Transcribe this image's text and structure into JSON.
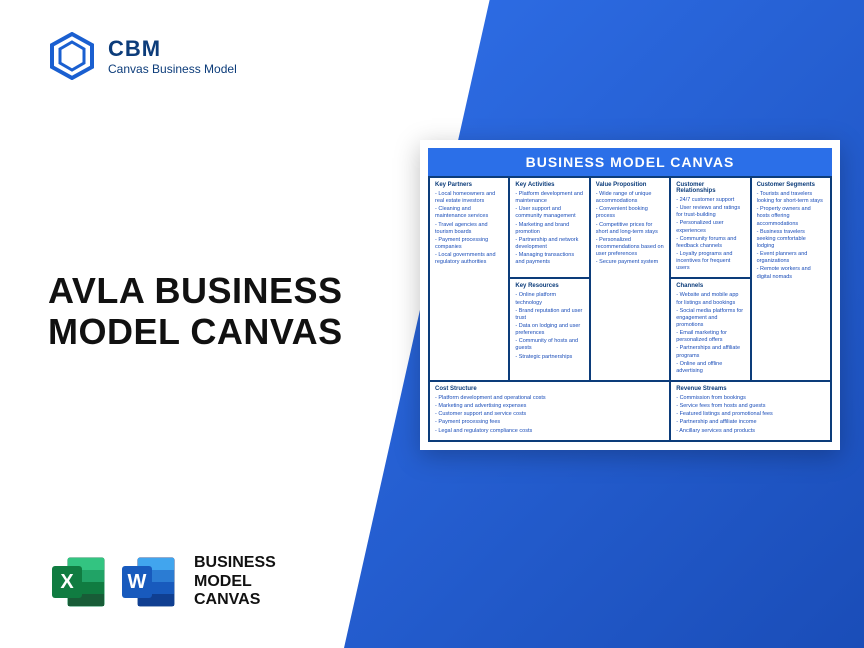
{
  "logo": {
    "brand": "CBM",
    "tagline": "Canvas Business Model"
  },
  "title": {
    "line1": "AVLA BUSINESS",
    "line2": "MODEL CANVAS"
  },
  "bottom": {
    "line1": "BUSINESS",
    "line2": "MODEL",
    "line3": "CANVAS"
  },
  "canvas": {
    "header": "BUSINESS MODEL CANVAS",
    "colors": {
      "header_bg": "#2b6fe8",
      "border": "#0c3c7a",
      "text": "#1a4db8"
    },
    "sections": {
      "key_partners": {
        "title": "Key Partners",
        "items": [
          "Local homeowners and real estate investors",
          "Cleaning and maintenance services",
          "Travel agencies and tourism boards",
          "Payment processing companies",
          "Local governments and regulatory authorities"
        ]
      },
      "key_activities": {
        "title": "Key Activities",
        "items": [
          "Platform development and maintenance",
          "User support and community management",
          "Marketing and brand promotion",
          "Partnership and network development",
          "Managing transactions and payments"
        ]
      },
      "key_resources": {
        "title": "Key Resources",
        "items": [
          "Online platform technology",
          "Brand reputation and user trust",
          "Data on lodging and user preferences",
          "Community of hosts and guests",
          "Strategic partnerships"
        ]
      },
      "value_proposition": {
        "title": "Value Proposition",
        "items": [
          "Wide range of unique accommodations",
          "Convenient booking process",
          "Competitive prices for short and long-term stays",
          "Personalized recommendations based on user preferences",
          "Secure payment system"
        ]
      },
      "customer_relationships": {
        "title": "Customer Relationships",
        "items": [
          "24/7 customer support",
          "User reviews and ratings for trust-building",
          "Personalized user experiences",
          "Community forums and feedback channels",
          "Loyalty programs and incentives for frequent users"
        ]
      },
      "channels": {
        "title": "Channels",
        "items": [
          "Website and mobile app for listings and bookings",
          "Social media platforms for engagement and promotions",
          "Email marketing for personalized offers",
          "Partnerships and affiliate programs",
          "Online and offline advertising"
        ]
      },
      "customer_segments": {
        "title": "Customer Segments",
        "items": [
          "Tourists and travelers looking for short-term stays",
          "Property owners and hosts offering accommodations",
          "Business travelers seeking comfortable lodging",
          "Event planners and organizations",
          "Remote workers and digital nomads"
        ]
      },
      "cost_structure": {
        "title": "Cost Structure",
        "items": [
          "Platform development and operational costs",
          "Marketing and advertising expenses",
          "Customer support and service costs",
          "Payment processing fees",
          "Legal and regulatory compliance costs"
        ]
      },
      "revenue_streams": {
        "title": "Revenue Streams",
        "items": [
          "Commission from bookings",
          "Service fees from hosts and guests",
          "Featured listings and promotional fees",
          "Partnership and affiliate income",
          "Ancillary services and products"
        ]
      }
    }
  }
}
